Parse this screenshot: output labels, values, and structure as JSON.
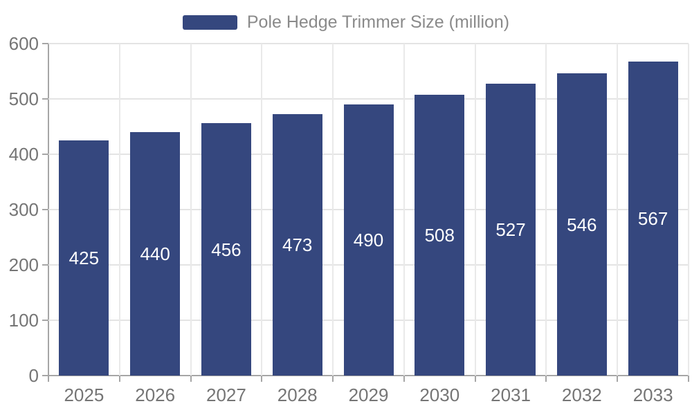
{
  "legend": {
    "label": "Pole Hedge Trimmer Size (million)",
    "swatch_color": "#35477e"
  },
  "chart_data": {
    "type": "bar",
    "title": "",
    "xlabel": "",
    "ylabel": "",
    "categories": [
      "2025",
      "2026",
      "2027",
      "2028",
      "2029",
      "2030",
      "2031",
      "2032",
      "2033"
    ],
    "series": [
      {
        "name": "Pole Hedge Trimmer Size (million)",
        "values": [
          425,
          440,
          456,
          473,
          490,
          508,
          527,
          546,
          567
        ]
      }
    ],
    "ylim": [
      0,
      600
    ],
    "yticks": [
      0,
      100,
      200,
      300,
      400,
      500,
      600
    ],
    "grid": "on",
    "legend_position": "top-center",
    "value_labels": "inside-center-white",
    "colors": {
      "bar": "#35477e",
      "axis_line": "#a6a6a6",
      "gridline": "#e4e4e4",
      "axis_label_text": "#757575",
      "legend_text": "#8a8a8a",
      "value_label_text": "#ffffff",
      "background": "#ffffff"
    }
  }
}
